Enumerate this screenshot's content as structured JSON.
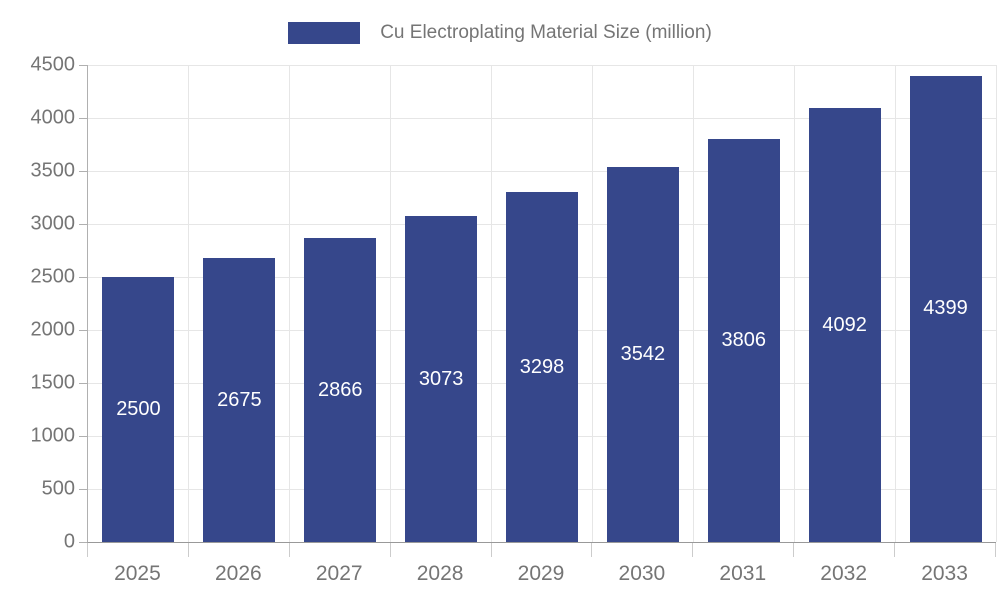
{
  "chart_data": {
    "type": "bar",
    "title": "Cu Electroplating Material Size (million)",
    "legend": {
      "label": "Cu Electroplating Material Size (million)",
      "position": "top"
    },
    "categories": [
      "2025",
      "2026",
      "2027",
      "2028",
      "2029",
      "2030",
      "2031",
      "2032",
      "2033"
    ],
    "values": [
      2500,
      2675,
      2866,
      3073,
      3298,
      3542,
      3806,
      4092,
      4399
    ],
    "xlabel": "",
    "ylabel": "",
    "ylim": [
      0,
      4500
    ],
    "ytick_step": 500,
    "ytick_labels": [
      "0",
      "500",
      "1000",
      "1500",
      "2000",
      "2500",
      "3000",
      "3500",
      "4000",
      "4500"
    ],
    "grid": true,
    "colors": {
      "bar": "#36478B",
      "bar_value_text": "#ffffff",
      "axis_text": "#757575",
      "grid_line": "#e6e6e6",
      "y_axis_line": "#b0b0b0",
      "x_axis_line": "#999999"
    }
  }
}
